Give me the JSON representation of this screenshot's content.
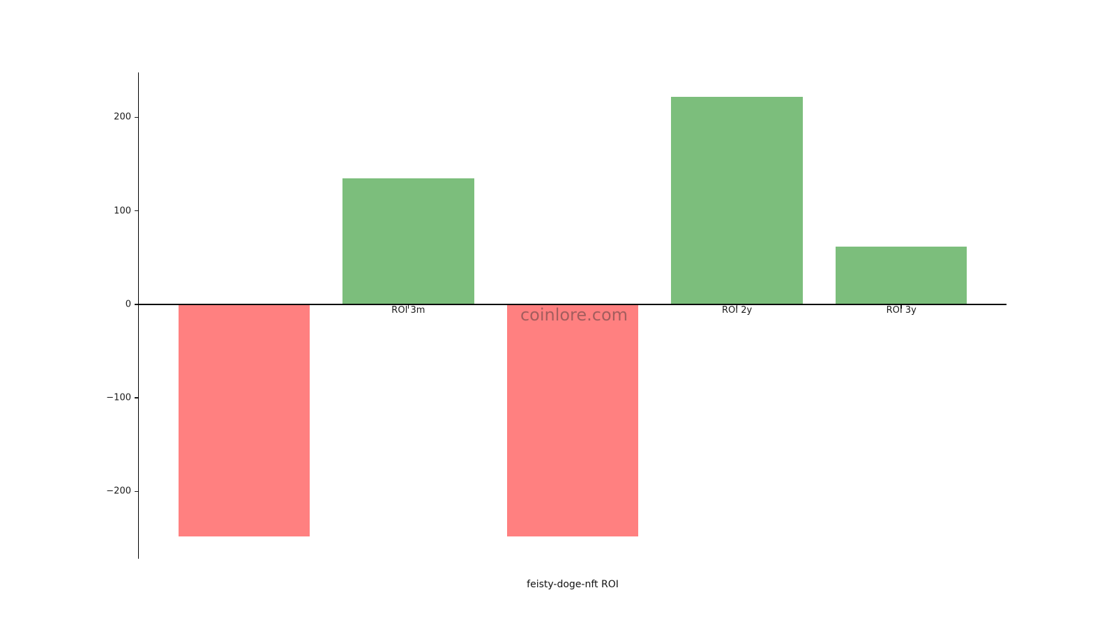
{
  "page": {
    "background": "#ffffff"
  },
  "chart_data": {
    "type": "bar",
    "title": "feisty-doge-nft ROI",
    "watermark": "coinlore.com",
    "categories": [
      "",
      "ROI 3m",
      "",
      "ROI 2y",
      "ROI 3y"
    ],
    "values": [
      -248,
      135,
      -248,
      222,
      62
    ],
    "colors": {
      "positive": "#7cbe7c",
      "negative": "#ff8080",
      "axis": "#000000",
      "tick_text": "#1a1a1a"
    },
    "yticks": [
      200,
      100,
      0,
      -100,
      -200
    ],
    "ylim": [
      -272,
      248
    ],
    "xlim": [
      -0.64,
      4.64
    ],
    "bar_width": 0.8,
    "xlabel": "",
    "ylabel": "",
    "legend": "none",
    "grid": false
  }
}
